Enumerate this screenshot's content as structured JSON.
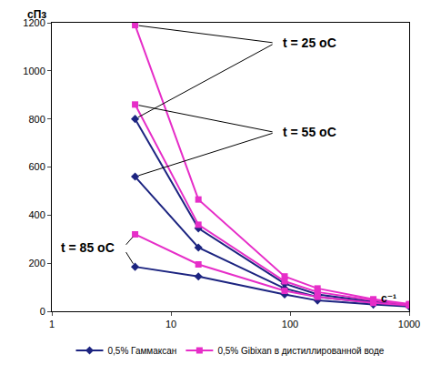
{
  "chart_data": {
    "type": "line",
    "log": "x",
    "grid": false,
    "legend": "bottom",
    "y_label": "сПз",
    "x_label": "с⁻¹",
    "xlim": [
      1,
      1000
    ],
    "xticks": [
      1,
      10,
      100,
      1000
    ],
    "ylim": [
      0,
      1200
    ],
    "yticks": [
      0,
      200,
      400,
      600,
      800,
      1000,
      1200
    ],
    "x": [
      5,
      17,
      90,
      170,
      500,
      1000
    ],
    "series": [
      {
        "name": "0,5% Гаммаксан",
        "annotation": "t = 25 оС",
        "color": "#1c2480",
        "marker": "diamond",
        "values": [
          800,
          345,
          115,
          70,
          40,
          25
        ]
      },
      {
        "name": "0,5% Гаммаксан",
        "annotation": "t = 55 оС",
        "color": "#1c2480",
        "marker": "diamond",
        "values": [
          560,
          265,
          95,
          60,
          35,
          22
        ]
      },
      {
        "name": "0,5% Гаммаксан",
        "annotation": "t = 85 оС",
        "color": "#1c2480",
        "marker": "diamond",
        "values": [
          185,
          145,
          70,
          45,
          28,
          20
        ]
      },
      {
        "name": "0,5% Gibixan в дистиллированной воде",
        "annotation": "t = 25 оС",
        "color": "#e62ec8",
        "marker": "square",
        "values": [
          1190,
          465,
          145,
          95,
          50,
          30
        ]
      },
      {
        "name": "0,5% Gibixan в дистиллированной воде",
        "annotation": "t = 55 оС",
        "color": "#e62ec8",
        "marker": "square",
        "values": [
          860,
          360,
          125,
          80,
          45,
          28
        ]
      },
      {
        "name": "0,5% Gibixan в дистиллированной воде",
        "annotation": "t = 85 оС",
        "color": "#e62ec8",
        "marker": "square",
        "values": [
          320,
          195,
          85,
          60,
          35,
          25
        ]
      }
    ]
  }
}
